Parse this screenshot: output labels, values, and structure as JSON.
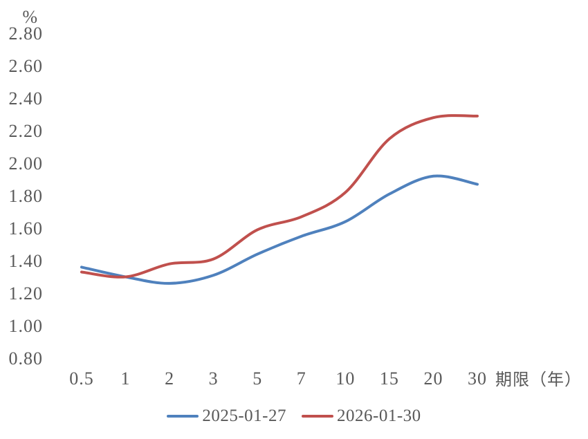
{
  "chart": {
    "background": "#ffffff",
    "text_color": "#595959"
  },
  "chart_data": {
    "type": "line",
    "title": "",
    "categories": [
      "0.5",
      "1",
      "2",
      "3",
      "5",
      "7",
      "10",
      "15",
      "20",
      "30"
    ],
    "xlabel": "期限（年）",
    "ylabel": "%",
    "ylim": [
      0.8,
      2.8
    ],
    "ytick_step": 0.2,
    "ytick_decimals": 2,
    "grid": false,
    "axis_lines": false,
    "legend_position": "bottom",
    "series": [
      {
        "name": "2025-01-27",
        "color": "#4F81BD",
        "values": [
          1.36,
          1.3,
          1.26,
          1.31,
          1.44,
          1.55,
          1.64,
          1.81,
          1.92,
          1.87
        ]
      },
      {
        "name": "2026-01-30",
        "color": "#C0504D",
        "values": [
          1.33,
          1.3,
          1.38,
          1.41,
          1.59,
          1.67,
          1.82,
          2.15,
          2.28,
          2.29
        ]
      }
    ]
  }
}
